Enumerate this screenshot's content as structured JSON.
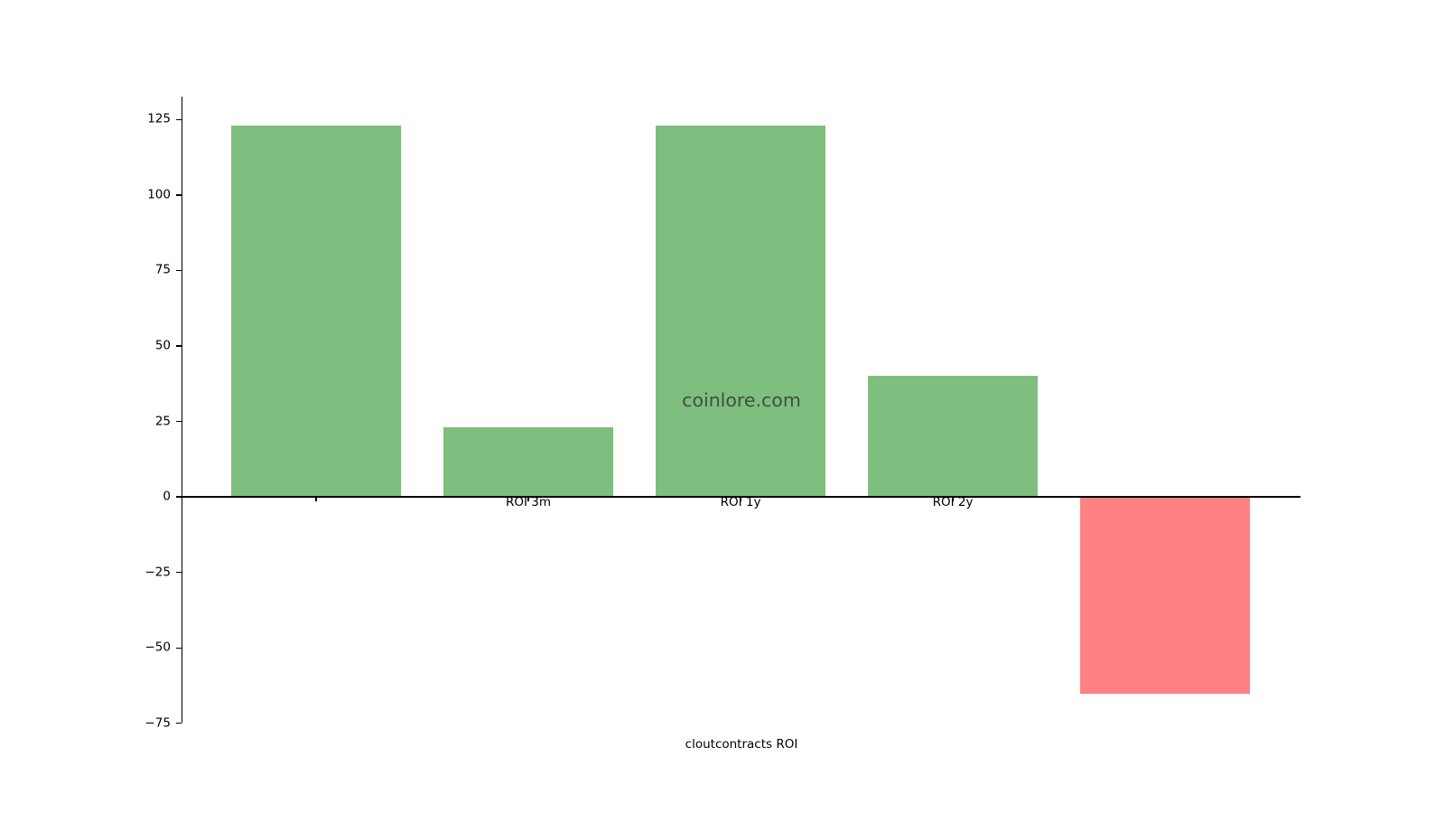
{
  "watermark": "coinlore.com",
  "chart_data": {
    "type": "bar",
    "title": "cloutcontracts ROI",
    "xlabel": "cloutcontracts ROI",
    "ylabel": "",
    "categories": [
      "",
      "ROI 3m",
      "ROI 1y",
      "ROI 2y",
      ""
    ],
    "values": [
      123,
      23,
      123,
      40,
      -65
    ],
    "yticks": [
      125,
      100,
      75,
      50,
      25,
      0,
      -25,
      -50,
      -75
    ],
    "ylim": [
      -75,
      133
    ],
    "grid": false,
    "legend_position": "none",
    "positive_color": "#7ebe7e",
    "negative_color": "#ff8181",
    "axis_color": "#000000"
  }
}
